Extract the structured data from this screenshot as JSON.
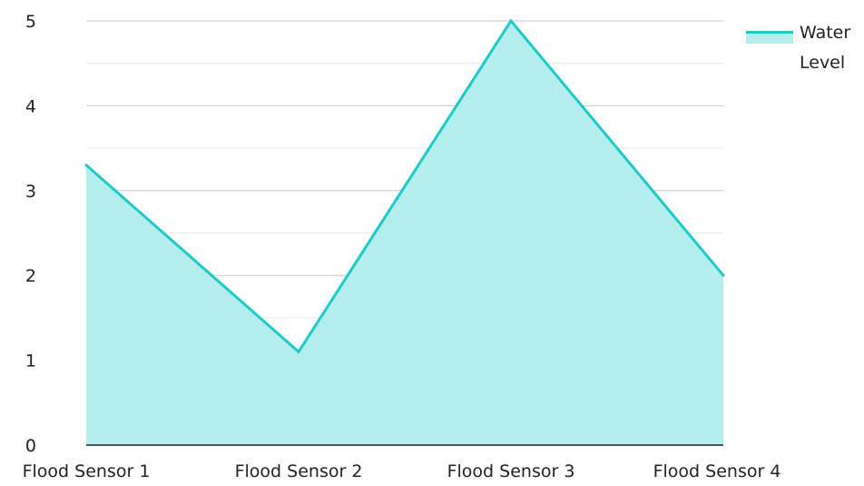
{
  "chart_data": {
    "type": "area",
    "categories": [
      "Flood Sensor 1",
      "Flood Sensor 2",
      "Flood Sensor 3",
      "Flood Sensor 4"
    ],
    "series": [
      {
        "name": "Water Level",
        "values": [
          3.3,
          1.1,
          5.0,
          2.0
        ],
        "color": "#1ecac7",
        "fill_color": "#b3eeed"
      }
    ],
    "y_ticks": [
      "0",
      "1",
      "2",
      "3",
      "4",
      "5"
    ],
    "ylim": [
      0,
      5
    ],
    "grid": true,
    "legend": {
      "position": "top-right",
      "lines": [
        "Water",
        "Level"
      ]
    },
    "title": "",
    "xlabel": "",
    "ylabel": ""
  }
}
